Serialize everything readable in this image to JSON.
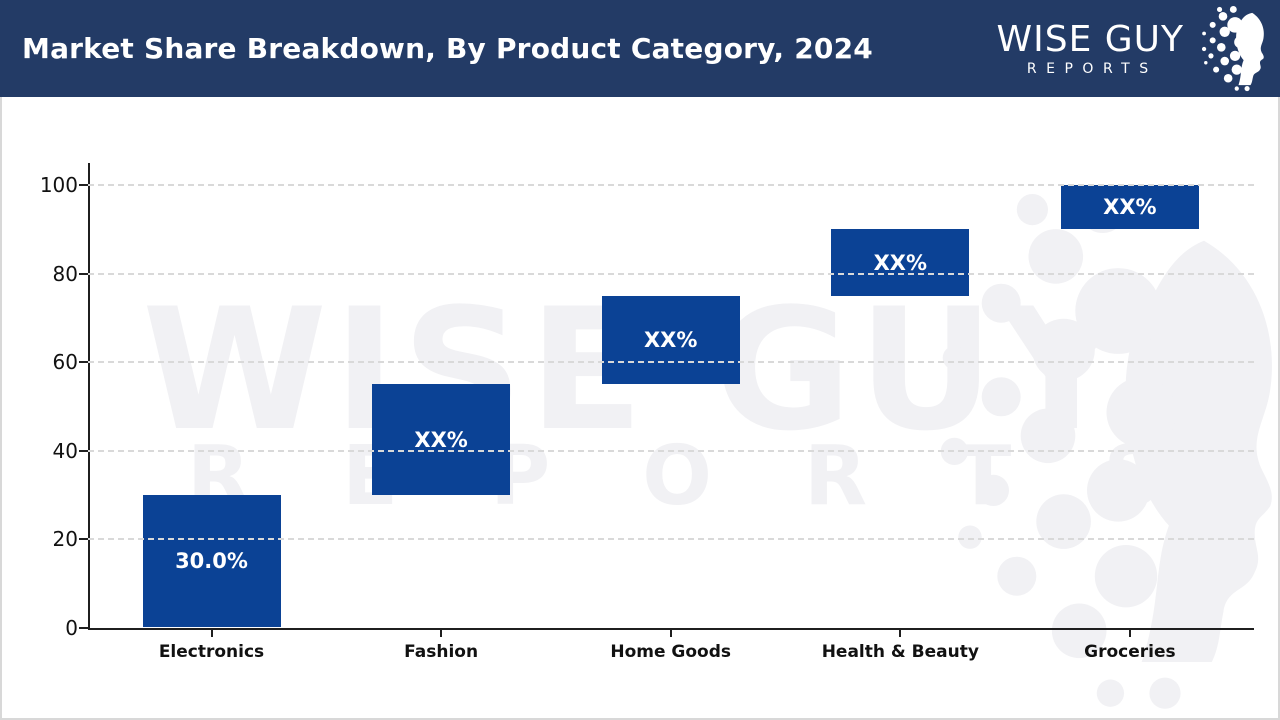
{
  "header": {
    "title": "Market Share Breakdown, By Product Category, 2024",
    "background_color": "#233b66",
    "logo": {
      "line1": "WISE GUY",
      "line2": "REPORTS"
    }
  },
  "watermark": {
    "line1": "WISE GUY",
    "line2": "REPORTS"
  },
  "chart_data": {
    "type": "bar",
    "subtype": "waterfall",
    "title": "Market Share Breakdown, By Product Category, 2024",
    "xlabel": "",
    "ylabel": "",
    "ylim": [
      0,
      100
    ],
    "yticks": [
      0,
      20,
      40,
      60,
      80,
      100
    ],
    "grid": "horizontal dashed, drawn above bars",
    "legend": "none",
    "bar_color": "#0b4295",
    "bar_label_color": "#ffffff",
    "categories": [
      "Electronics",
      "Fashion",
      "Home Goods",
      "Health & Beauty",
      "Groceries"
    ],
    "segments": [
      {
        "category": "Electronics",
        "start": 0,
        "end": 30,
        "label": "30.0%"
      },
      {
        "category": "Fashion",
        "start": 30,
        "end": 55,
        "label": "XX%"
      },
      {
        "category": "Home Goods",
        "start": 55,
        "end": 75,
        "label": "XX%"
      },
      {
        "category": "Health & Beauty",
        "start": 75,
        "end": 90,
        "label": "XX%"
      },
      {
        "category": "Groceries",
        "start": 90,
        "end": 100,
        "label": "XX%"
      }
    ]
  }
}
